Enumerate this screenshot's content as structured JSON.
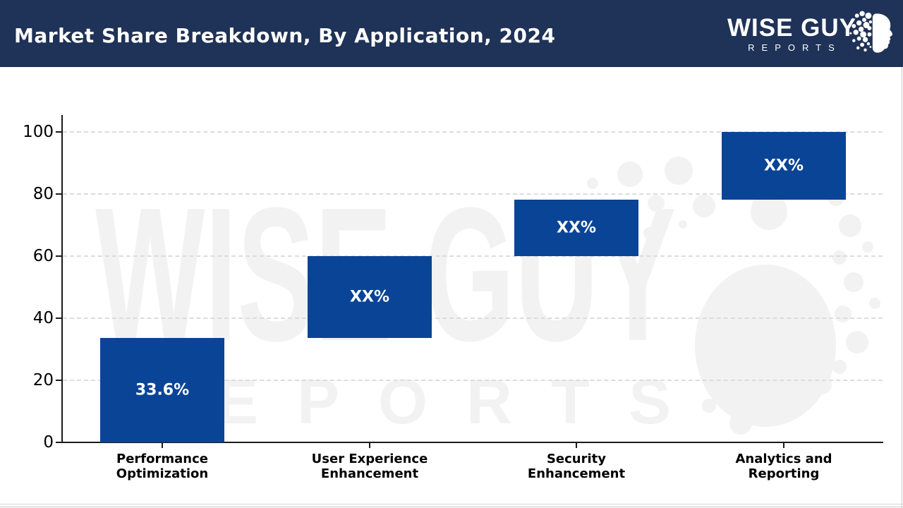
{
  "header": {
    "title": "Market Share Breakdown, By Application, 2024",
    "logo": {
      "wordmark": "WISE GUY",
      "subtitle": "REPORTS"
    }
  },
  "watermark": {
    "wordmark": "WISE GUY",
    "subtitle": "REPORTS"
  },
  "colors": {
    "header_bg": "#1f3257",
    "bar": "#0a4496",
    "grid": "#dcdcdc",
    "axis": "#1a1a1a",
    "watermark": "#f2f2f2",
    "bar_label": "#ffffff",
    "text": "#000000"
  },
  "chart_data": {
    "type": "bar",
    "subtype": "waterfall",
    "title": "Market Share Breakdown, By Application, 2024",
    "xlabel": "",
    "ylabel": "",
    "ylim": [
      0,
      105
    ],
    "yticks": [
      0,
      20,
      40,
      60,
      80,
      100
    ],
    "grid": "horizontal-dashed",
    "legend_position": "none",
    "categories": [
      {
        "line1": "Performance",
        "line2": "Optimization"
      },
      {
        "line1": "User Experience",
        "line2": "Enhancement"
      },
      {
        "line1": "Security",
        "line2": "Enhancement"
      },
      {
        "line1": "Analytics and",
        "line2": "Reporting"
      }
    ],
    "segments": [
      {
        "name": "Performance Optimization",
        "start": 0,
        "end": 33.6,
        "value": 33.6,
        "label": "33.6%"
      },
      {
        "name": "User Experience Enhancement",
        "start": 33.6,
        "end": 60,
        "value": 26.4,
        "label": "XX%"
      },
      {
        "name": "Security Enhancement",
        "start": 60,
        "end": 78.2,
        "value": 18.2,
        "label": "XX%"
      },
      {
        "name": "Analytics and Reporting",
        "start": 78.2,
        "end": 100,
        "value": 21.8,
        "label": "XX%"
      }
    ]
  }
}
